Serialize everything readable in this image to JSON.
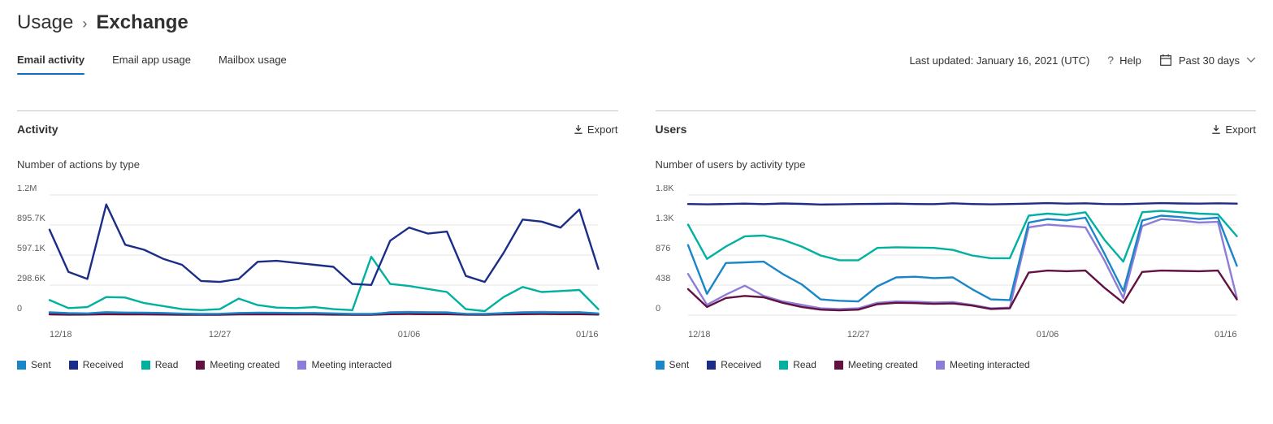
{
  "breadcrumb": {
    "parent": "Usage",
    "separator": "›",
    "current": "Exchange"
  },
  "tabs": [
    {
      "label": "Email activity",
      "active": true
    },
    {
      "label": "Email app usage",
      "active": false
    },
    {
      "label": "Mailbox usage",
      "active": false
    }
  ],
  "header_right": {
    "last_updated": "Last updated: January 16, 2021 (UTC)",
    "help_icon": "?",
    "help_label": "Help",
    "date_range": "Past 30 days"
  },
  "panels": [
    {
      "title": "Activity",
      "export_label": "Export",
      "subtitle": "Number of actions by type"
    },
    {
      "title": "Users",
      "export_label": "Export",
      "subtitle": "Number of users by activity type"
    }
  ],
  "chart_data": [
    {
      "type": "line",
      "title": "Activity",
      "subtitle": "Number of actions by type",
      "grid": "horizontal",
      "legend_position": "bottom",
      "x": [
        "12/18",
        "12/19",
        "12/20",
        "12/21",
        "12/22",
        "12/23",
        "12/24",
        "12/25",
        "12/26",
        "12/27",
        "12/28",
        "12/29",
        "12/30",
        "12/31",
        "01/01",
        "01/02",
        "01/03",
        "01/04",
        "01/05",
        "01/06",
        "01/07",
        "01/08",
        "01/09",
        "01/10",
        "01/11",
        "01/12",
        "01/13",
        "01/14",
        "01/15",
        "01/16"
      ],
      "x_tick_labels": [
        "12/18",
        "12/27",
        "01/06",
        "01/16"
      ],
      "ylim": [
        0,
        1194300
      ],
      "y_ticks": [
        {
          "value": 0,
          "label": "0"
        },
        {
          "value": 298600,
          "label": "298.6K"
        },
        {
          "value": 597100,
          "label": "597.1K"
        },
        {
          "value": 895700,
          "label": "895.7K"
        },
        {
          "value": 1194300,
          "label": "1.2M"
        }
      ],
      "series": [
        {
          "name": "Sent",
          "color": "#1a86c8",
          "values": [
            28000,
            20000,
            18000,
            30000,
            26000,
            24000,
            22000,
            15000,
            12000,
            14000,
            22000,
            24000,
            23000,
            22000,
            22000,
            18000,
            12000,
            12000,
            25000,
            28000,
            27000,
            26000,
            14000,
            12000,
            20000,
            26000,
            27000,
            26000,
            28000,
            18000
          ]
        },
        {
          "name": "Received",
          "color": "#1b2d89",
          "values": [
            850000,
            430000,
            360000,
            1100000,
            700000,
            650000,
            560000,
            500000,
            340000,
            330000,
            360000,
            530000,
            540000,
            520000,
            500000,
            480000,
            310000,
            300000,
            740000,
            870000,
            810000,
            830000,
            390000,
            330000,
            620000,
            950000,
            930000,
            870000,
            1050000,
            460000
          ]
        },
        {
          "name": "Read",
          "color": "#00b0a0",
          "values": [
            150000,
            70000,
            80000,
            180000,
            175000,
            120000,
            90000,
            60000,
            50000,
            60000,
            165000,
            100000,
            75000,
            70000,
            80000,
            60000,
            50000,
            580000,
            310000,
            290000,
            260000,
            230000,
            60000,
            40000,
            180000,
            280000,
            230000,
            240000,
            250000,
            60000
          ]
        },
        {
          "name": "Meeting created",
          "color": "#621140",
          "values": [
            8000,
            5000,
            6000,
            9000,
            8000,
            7000,
            6000,
            4000,
            3000,
            4000,
            7000,
            8000,
            7000,
            7000,
            7000,
            5000,
            3000,
            3000,
            10000,
            11000,
            10000,
            10000,
            5000,
            4000,
            8000,
            10000,
            11000,
            10000,
            10000,
            6000
          ]
        },
        {
          "name": "Meeting interacted",
          "color": "#8d7dd8",
          "values": [
            15000,
            8000,
            10000,
            14000,
            12000,
            10000,
            9000,
            6000,
            5000,
            6000,
            10000,
            11000,
            10000,
            10000,
            10000,
            8000,
            5000,
            5000,
            30000,
            32000,
            30000,
            28000,
            10000,
            8000,
            20000,
            30000,
            32000,
            30000,
            30000,
            12000
          ]
        }
      ]
    },
    {
      "type": "line",
      "title": "Users",
      "subtitle": "Number of users by activity type",
      "grid": "horizontal",
      "legend_position": "bottom",
      "x": [
        "12/18",
        "12/19",
        "12/20",
        "12/21",
        "12/22",
        "12/23",
        "12/24",
        "12/25",
        "12/26",
        "12/27",
        "12/28",
        "12/29",
        "12/30",
        "12/31",
        "01/01",
        "01/02",
        "01/03",
        "01/04",
        "01/05",
        "01/06",
        "01/07",
        "01/08",
        "01/09",
        "01/10",
        "01/11",
        "01/12",
        "01/13",
        "01/14",
        "01/15",
        "01/16"
      ],
      "x_tick_labels": [
        "12/18",
        "12/27",
        "01/06",
        "01/16"
      ],
      "ylim": [
        0,
        1752
      ],
      "y_ticks": [
        {
          "value": 0,
          "label": "0"
        },
        {
          "value": 438,
          "label": "438"
        },
        {
          "value": 876,
          "label": "876"
        },
        {
          "value": 1314,
          "label": "1.3K"
        },
        {
          "value": 1752,
          "label": "1.8K"
        }
      ],
      "series": [
        {
          "name": "Sent",
          "color": "#1a86c8",
          "values": [
            1020,
            310,
            760,
            770,
            780,
            600,
            450,
            230,
            210,
            200,
            420,
            550,
            560,
            540,
            550,
            380,
            230,
            220,
            1350,
            1400,
            1380,
            1420,
            900,
            350,
            1380,
            1450,
            1430,
            1400,
            1420,
            720
          ]
        },
        {
          "name": "Received",
          "color": "#1b2d89",
          "values": [
            1620,
            1615,
            1620,
            1625,
            1618,
            1628,
            1622,
            1612,
            1615,
            1620,
            1622,
            1625,
            1620,
            1618,
            1630,
            1620,
            1615,
            1620,
            1625,
            1632,
            1625,
            1630,
            1620,
            1618,
            1625,
            1632,
            1628,
            1625,
            1630,
            1625
          ]
        },
        {
          "name": "Read",
          "color": "#00b0a0",
          "values": [
            1320,
            820,
            1000,
            1150,
            1160,
            1100,
            1000,
            870,
            800,
            800,
            980,
            990,
            985,
            980,
            950,
            870,
            830,
            830,
            1450,
            1480,
            1460,
            1500,
            1100,
            780,
            1500,
            1520,
            1500,
            1480,
            1470,
            1150
          ]
        },
        {
          "name": "Meeting created",
          "color": "#621140",
          "values": [
            380,
            120,
            250,
            280,
            260,
            180,
            120,
            80,
            70,
            80,
            160,
            180,
            175,
            165,
            170,
            140,
            90,
            100,
            620,
            650,
            640,
            650,
            400,
            180,
            630,
            650,
            645,
            640,
            650,
            230
          ]
        },
        {
          "name": "Meeting interacted",
          "color": "#8d7dd8",
          "values": [
            600,
            150,
            300,
            430,
            280,
            200,
            150,
            100,
            90,
            100,
            180,
            200,
            195,
            185,
            190,
            150,
            100,
            110,
            1280,
            1320,
            1300,
            1280,
            800,
            250,
            1300,
            1400,
            1380,
            1350,
            1360,
            250
          ]
        }
      ]
    }
  ]
}
